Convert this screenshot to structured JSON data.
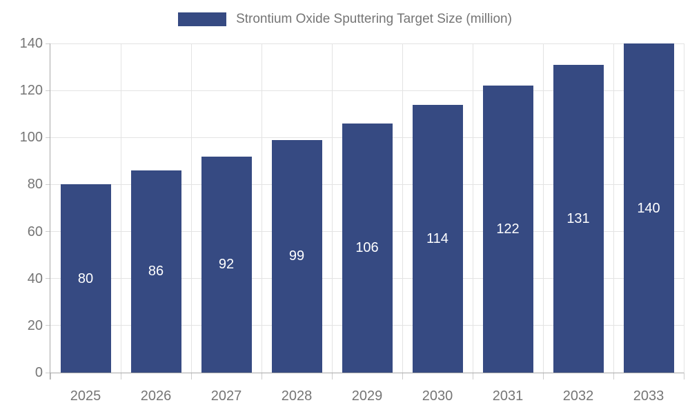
{
  "legend": {
    "label": "Strontium Oxide Sputtering Target Size (million)"
  },
  "chart_data": {
    "type": "bar",
    "title": "Strontium Oxide Sputtering Target Size (million)",
    "series_name": "Strontium Oxide Sputtering Target Size (million)",
    "categories": [
      "2025",
      "2026",
      "2027",
      "2028",
      "2029",
      "2030",
      "2031",
      "2032",
      "2033"
    ],
    "values": [
      80,
      86,
      92,
      99,
      106,
      114,
      122,
      131,
      140
    ],
    "xlabel": "",
    "ylabel": "",
    "ylim": [
      0,
      140
    ],
    "yticks": [
      0,
      20,
      40,
      60,
      80,
      100,
      120,
      140
    ],
    "grid": true,
    "legend_position": "top",
    "colors": {
      "bar": "#364a82",
      "bar_value_label": "#ffffff",
      "axis_text": "#757575",
      "legend_text": "#757575",
      "grid_line": "#e3e3e3",
      "axis_line": "#a8a8a8",
      "tick_line": "#cccccc"
    }
  }
}
